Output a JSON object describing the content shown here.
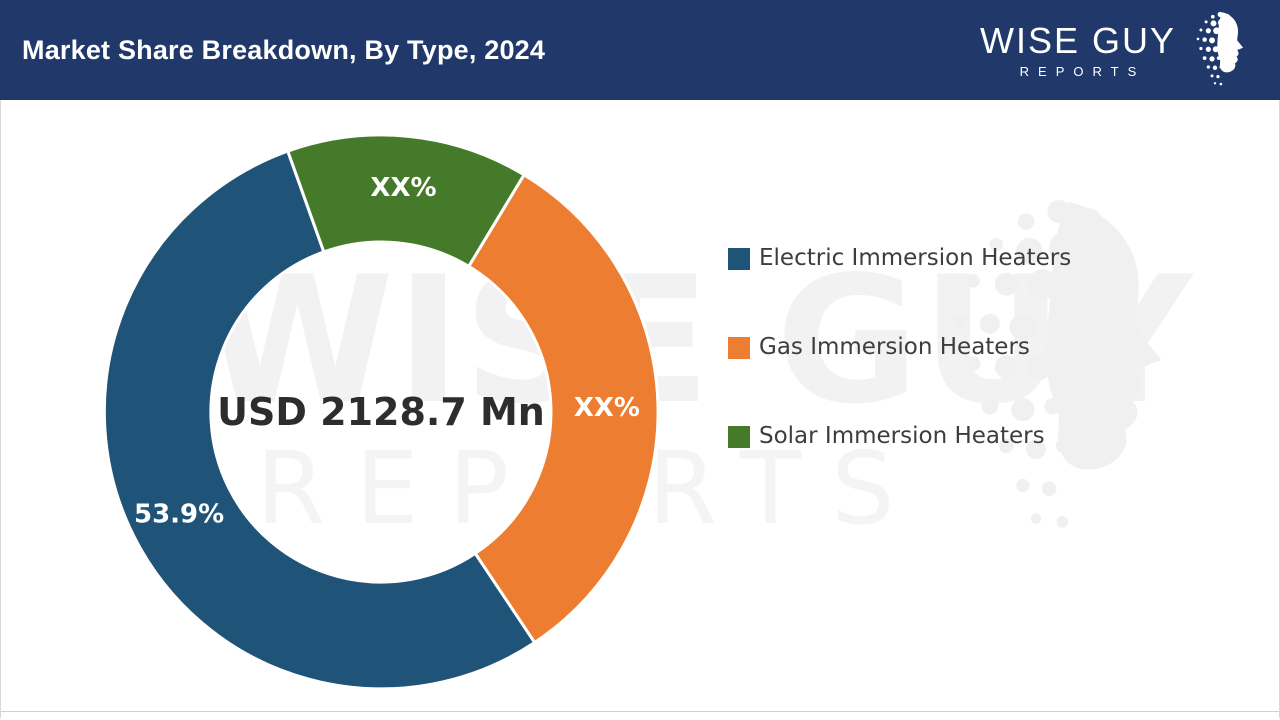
{
  "header": {
    "title": "Market Share Breakdown, By Type, 2024",
    "logo": {
      "line1": "WISE GUY",
      "line2": "REPORTS"
    }
  },
  "watermark": {
    "line1": "WISE GUY",
    "line2": "REPORTS"
  },
  "colors": {
    "header_bg": "#21386b",
    "electric_blue": "#1f5377",
    "gas_orange": "#ed7d31",
    "solar_green": "#447a29"
  },
  "chart_data": {
    "type": "pie",
    "subtype": "donut",
    "title": "Market Share Breakdown, By Type, 2024",
    "center_label": "USD 2128.7 Mn",
    "start_angle_deg_cw_from_top": 146.3,
    "direction": "clockwise",
    "slices": [
      {
        "name": "Electric Immersion Heaters",
        "value": 53.9,
        "display_label": "53.9%",
        "color": "#1f5377"
      },
      {
        "name": "Solar Immersion Heaters",
        "value": 14.1,
        "display_label": "XX%",
        "color": "#447a29"
      },
      {
        "name": "Gas Immersion Heaters",
        "value": 32.0,
        "display_label": "XX%",
        "color": "#ed7d31"
      }
    ],
    "legend": [
      {
        "label": "Electric Immersion Heaters",
        "color": "#1f5377"
      },
      {
        "label": "Gas Immersion Heaters",
        "color": "#ed7d31"
      },
      {
        "label": "Solar Immersion Heaters",
        "color": "#447a29"
      }
    ],
    "legend_position": "right"
  }
}
